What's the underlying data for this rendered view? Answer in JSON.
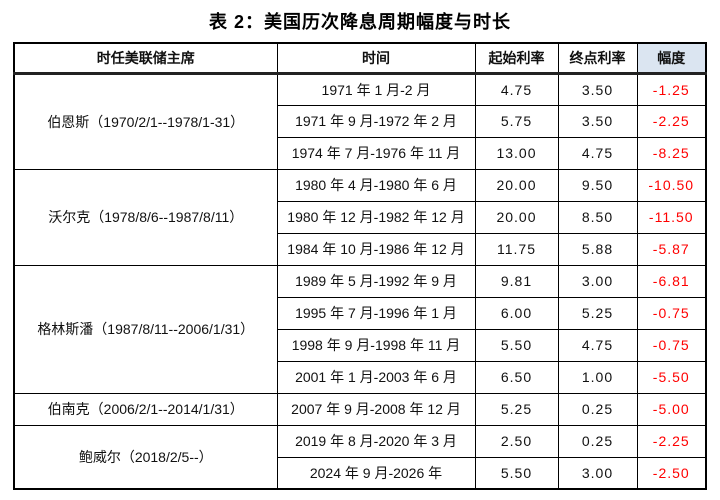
{
  "title": "表 2：美国历次降息周期幅度与时长",
  "table": {
    "headers": {
      "chair": "时任美联储主席",
      "period": "时间",
      "start_rate": "起始利率",
      "end_rate": "终点利率",
      "change": "幅度"
    },
    "accent_bg": "#dbe5f1",
    "negative_color": "#ff0000",
    "groups": [
      {
        "chair": "伯恩斯（1970/2/1--1978/1-31）",
        "rows": [
          {
            "period": "1971 年 1 月-2 月",
            "start": "4.75",
            "end": "3.50",
            "change": "-1.25"
          },
          {
            "period": "1971 年 9 月-1972 年 2 月",
            "start": "5.75",
            "end": "3.50",
            "change": "-2.25"
          },
          {
            "period": "1974 年 7 月-1976 年 11 月",
            "start": "13.00",
            "end": "4.75",
            "change": "-8.25"
          }
        ]
      },
      {
        "chair": "沃尔克（1978/8/6--1987/8/11）",
        "rows": [
          {
            "period": "1980 年 4 月-1980 年 6 月",
            "start": "20.00",
            "end": "9.50",
            "change": "-10.50"
          },
          {
            "period": "1980 年 12 月-1982 年 12 月",
            "start": "20.00",
            "end": "8.50",
            "change": "-11.50"
          },
          {
            "period": "1984 年 10 月-1986 年 12 月",
            "start": "11.75",
            "end": "5.88",
            "change": "-5.87"
          }
        ]
      },
      {
        "chair": "格林斯潘（1987/8/11--2006/1/31）",
        "rows": [
          {
            "period": "1989 年 5 月-1992 年 9 月",
            "start": "9.81",
            "end": "3.00",
            "change": "-6.81"
          },
          {
            "period": "1995 年 7 月-1996 年 1 月",
            "start": "6.00",
            "end": "5.25",
            "change": "-0.75"
          },
          {
            "period": "1998 年 9 月-1998 年 11 月",
            "start": "5.50",
            "end": "4.75",
            "change": "-0.75"
          },
          {
            "period": "2001 年 1 月-2003 年 6 月",
            "start": "6.50",
            "end": "1.00",
            "change": "-5.50"
          }
        ]
      },
      {
        "chair": "伯南克（2006/2/1--2014/1/31）",
        "rows": [
          {
            "period": "2007 年 9 月-2008 年 12 月",
            "start": "5.25",
            "end": "0.25",
            "change": "-5.00"
          }
        ]
      },
      {
        "chair": "鲍威尔（2018/2/5--）",
        "rows": [
          {
            "period": "2019 年 8 月-2020 年 3 月",
            "start": "2.50",
            "end": "0.25",
            "change": "-2.25"
          },
          {
            "period": "2024 年 9 月-2026 年",
            "start": "5.50",
            "end": "3.00",
            "change": "-2.50"
          }
        ]
      }
    ]
  }
}
